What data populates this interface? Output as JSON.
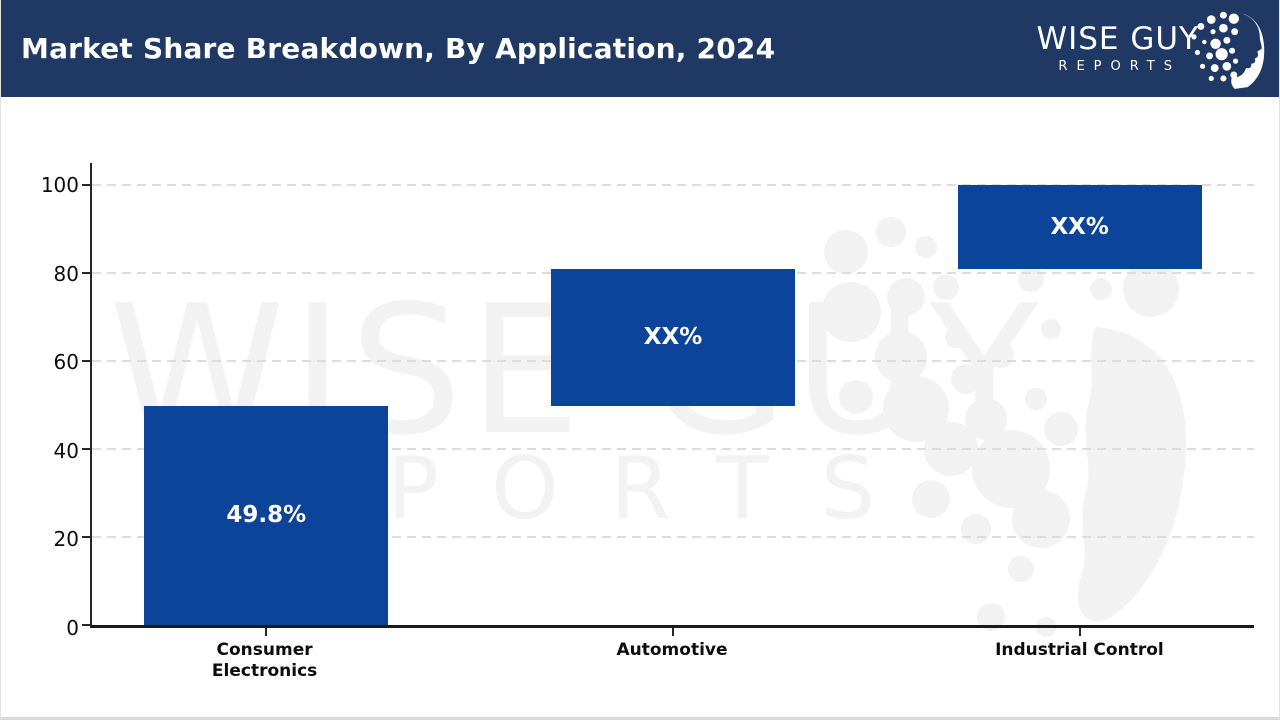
{
  "header": {
    "title": "Market Share Breakdown, By Application, 2024",
    "bg_color": "#1f3864",
    "logo": {
      "line1": "WISE GUY",
      "line2": "REPORTS"
    }
  },
  "watermark": {
    "line1": "WISE GUY",
    "line2": "REPORTS"
  },
  "chart_data": {
    "type": "bar",
    "subtype": "waterfall-stacked-breakdown",
    "title": "Market Share Breakdown, By Application, 2024",
    "categories": [
      "Consumer Electronics",
      "Automotive",
      "Industrial Control"
    ],
    "segments": [
      {
        "category": "Consumer Electronics",
        "category_lines": [
          "Consumer",
          "Electronics"
        ],
        "start": 0,
        "end": 49.8,
        "label": "49.8%"
      },
      {
        "category": "Automotive",
        "category_lines": [
          "Automotive"
        ],
        "start": 49.8,
        "end": 81.0,
        "label": "XX%"
      },
      {
        "category": "Industrial Control",
        "category_lines": [
          "Industrial Control"
        ],
        "start": 81.0,
        "end": 100.0,
        "label": "XX%"
      }
    ],
    "y_ticks": [
      0,
      20,
      40,
      60,
      80,
      100
    ],
    "ylim": [
      0,
      105
    ],
    "xlabel": "",
    "ylabel": "",
    "grid": "horizontal-dashed",
    "legend": "none",
    "bar_color": "#0b4499",
    "bar_label_color": "#ffffff"
  }
}
